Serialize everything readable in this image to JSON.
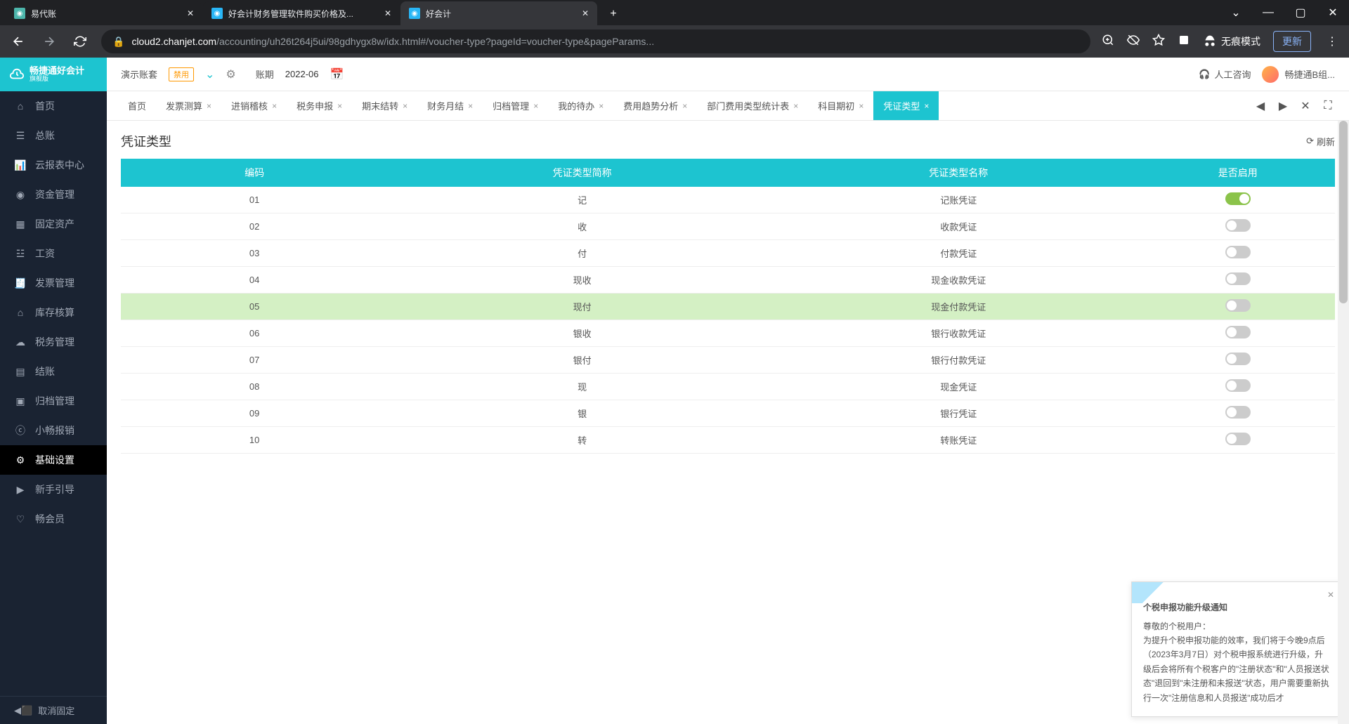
{
  "browser": {
    "tabs": [
      {
        "title": "易代账",
        "icon_bg": "#4db6ac",
        "active": false
      },
      {
        "title": "好会计财务管理软件购买价格及...",
        "icon_bg": "#29b6f6",
        "active": false
      },
      {
        "title": "好会计",
        "icon_bg": "#29b6f6",
        "active": true
      }
    ],
    "url_domain": "cloud2.chanjet.com",
    "url_path": "/accounting/uh26t264j5ui/98gdhygx8w/idx.html#/voucher-type?pageId=voucher-type&pageParams...",
    "incognito_label": "无痕模式",
    "update_label": "更新"
  },
  "app": {
    "logo_main": "畅捷通好会计",
    "logo_sub": "旗舰版",
    "sidebar": [
      {
        "icon": "⌂",
        "label": "首页"
      },
      {
        "icon": "☰",
        "label": "总账"
      },
      {
        "icon": "📊",
        "label": "云报表中心"
      },
      {
        "icon": "◉",
        "label": "资金管理"
      },
      {
        "icon": "▦",
        "label": "固定资产"
      },
      {
        "icon": "☳",
        "label": "工资"
      },
      {
        "icon": "🧾",
        "label": "发票管理"
      },
      {
        "icon": "⌂",
        "label": "库存核算"
      },
      {
        "icon": "☁",
        "label": "税务管理"
      },
      {
        "icon": "▤",
        "label": "结账"
      },
      {
        "icon": "▣",
        "label": "归档管理"
      },
      {
        "icon": "ⓒ",
        "label": "小畅报销"
      },
      {
        "icon": "⚙",
        "label": "基础设置",
        "active": true
      },
      {
        "icon": "▶",
        "label": "新手引导"
      },
      {
        "icon": "♡",
        "label": "畅会员"
      }
    ],
    "sidebar_bottom": "取消固定",
    "topbar": {
      "account": "演示账套",
      "disable_tag": "禁用",
      "settings_icon": "⚙",
      "period_label": "账期",
      "period_value": "2022-06",
      "support_label": "人工咨询",
      "user_name": "畅捷通B组..."
    },
    "tabs": [
      {
        "label": "首页",
        "closable": false
      },
      {
        "label": "发票测算",
        "closable": true
      },
      {
        "label": "进销稽核",
        "closable": true
      },
      {
        "label": "税务申报",
        "closable": true
      },
      {
        "label": "期末结转",
        "closable": true
      },
      {
        "label": "财务月结",
        "closable": true
      },
      {
        "label": "归档管理",
        "closable": true
      },
      {
        "label": "我的待办",
        "closable": true
      },
      {
        "label": "费用趋势分析",
        "closable": true
      },
      {
        "label": "部门费用类型统计表",
        "closable": true
      },
      {
        "label": "科目期初",
        "closable": true
      },
      {
        "label": "凭证类型",
        "closable": true,
        "active": true
      }
    ],
    "page": {
      "title": "凭证类型",
      "refresh_label": "刷新",
      "columns": [
        "编码",
        "凭证类型简称",
        "凭证类型名称",
        "是否启用"
      ],
      "rows": [
        {
          "code": "01",
          "short": "记",
          "name": "记账凭证",
          "enabled": true
        },
        {
          "code": "02",
          "short": "收",
          "name": "收款凭证",
          "enabled": false
        },
        {
          "code": "03",
          "short": "付",
          "name": "付款凭证",
          "enabled": false
        },
        {
          "code": "04",
          "short": "现收",
          "name": "现金收款凭证",
          "enabled": false
        },
        {
          "code": "05",
          "short": "现付",
          "name": "现金付款凭证",
          "enabled": false,
          "highlighted": true
        },
        {
          "code": "06",
          "short": "银收",
          "name": "银行收款凭证",
          "enabled": false
        },
        {
          "code": "07",
          "short": "银付",
          "name": "银行付款凭证",
          "enabled": false
        },
        {
          "code": "08",
          "short": "现",
          "name": "现金凭证",
          "enabled": false
        },
        {
          "code": "09",
          "short": "银",
          "name": "银行凭证",
          "enabled": false
        },
        {
          "code": "10",
          "short": "转",
          "name": "转账凭证",
          "enabled": false
        }
      ]
    },
    "notification": {
      "title": "个税申报功能升级通知",
      "greeting": "尊敬的个税用户：",
      "body": "为提升个税申报功能的效率，我们将于今晚9点后（2023年3月7日）对个税申报系统进行升级，升级后会将所有个税客户的\"注册状态\"和\"人员报送状态\"退回到\"未注册和未报送\"状态，用户需要重新执行一次\"注册信息和人员报送\"成功后才"
    }
  },
  "colors": {
    "primary": "#1dc4d0",
    "sidebar_bg": "#1a2332",
    "toggle_on": "#8bc34a",
    "highlight_row": "#d4f0c4"
  }
}
